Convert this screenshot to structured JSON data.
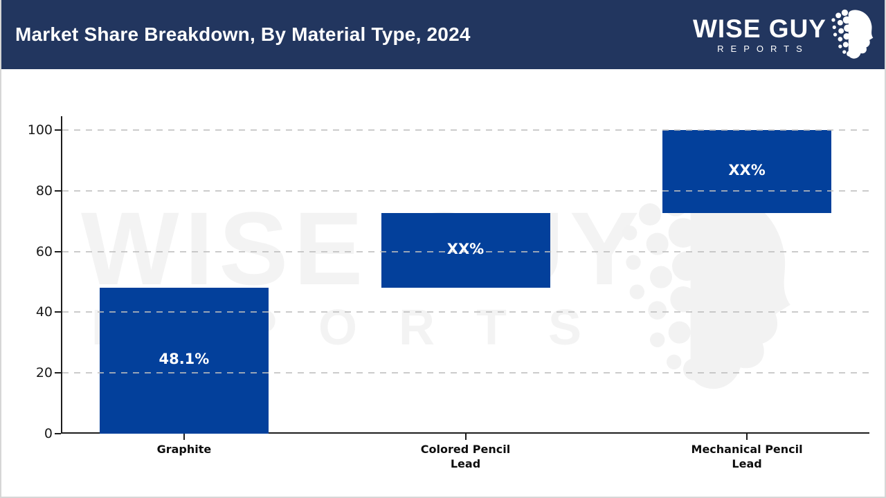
{
  "header": {
    "title": "Market Share Breakdown, By Material Type, 2024",
    "bg_color": "#22365F",
    "logo": {
      "line1": "WISE GUY",
      "line2": "REPORTS"
    }
  },
  "watermark": {
    "line1": "WISE GUY",
    "line2": "REPORTS"
  },
  "chart_data": {
    "type": "bar",
    "subtype": "floating-segment waterfall (cumulative market share)",
    "title": "Market Share Breakdown, By Material Type, 2024",
    "categories": [
      "Graphite",
      "Colored Pencil Lead",
      "Mechanical Pencil Lead"
    ],
    "category_lines": [
      [
        "Graphite"
      ],
      [
        "Colored Pencil",
        "Lead"
      ],
      [
        "Mechanical Pencil",
        "Lead"
      ]
    ],
    "segments": [
      {
        "category": "Graphite",
        "start": 0,
        "end": 48.1,
        "value": 48.1,
        "label": "48.1%"
      },
      {
        "category": "Colored Pencil Lead",
        "start": 48.1,
        "end": 72.6,
        "value": 24.5,
        "label": "XX%"
      },
      {
        "category": "Mechanical Pencil Lead",
        "start": 72.6,
        "end": 100,
        "value": 27.4,
        "label": "XX%"
      }
    ],
    "xlabel": "",
    "ylabel": "",
    "ylim": [
      0,
      100
    ],
    "yticks": [
      0,
      20,
      40,
      60,
      80,
      100
    ],
    "grid": "horizontal dashed, drawn over bars",
    "legend": "none",
    "bar_color": "#03409B",
    "bar_label_color": "#ffffff"
  }
}
